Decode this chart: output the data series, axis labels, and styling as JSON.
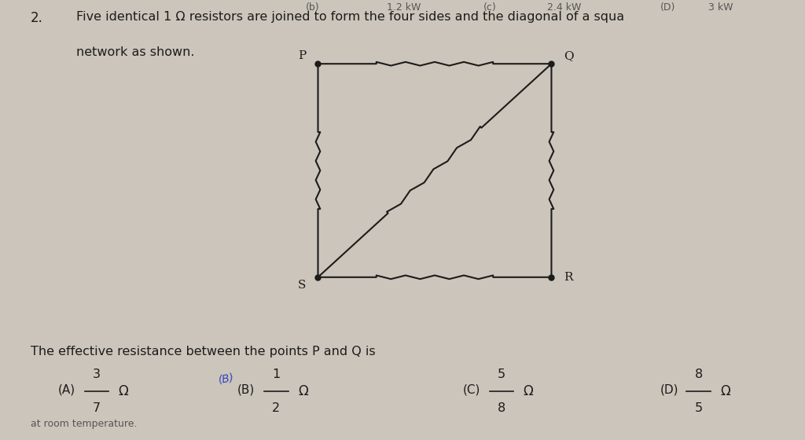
{
  "title_number": "2.",
  "title_text": "Five identical 1 Ω resistors are joined to form the four sides and the diagonal of a squa",
  "title_text2": "network as shown.",
  "question_text": "The effective resistance between the points P and Q is",
  "options": [
    {
      "label": "(A)",
      "fraction_num": "3",
      "fraction_den": "7",
      "unit": "Ω"
    },
    {
      "label": "(B)",
      "fraction_num": "1",
      "fraction_den": "2",
      "unit": "Ω"
    },
    {
      "label": "(C)",
      "fraction_num": "5",
      "fraction_den": "8",
      "unit": "Ω"
    },
    {
      "label": "(D)",
      "fraction_num": "8",
      "fraction_den": "5",
      "unit": "Ω"
    }
  ],
  "P": [
    0.395,
    0.855
  ],
  "Q": [
    0.685,
    0.855
  ],
  "S": [
    0.395,
    0.37
  ],
  "R": [
    0.685,
    0.37
  ],
  "bg_color": "#ccc5bb",
  "text_color": "#1c1c1c",
  "line_color": "#1c1c1c"
}
